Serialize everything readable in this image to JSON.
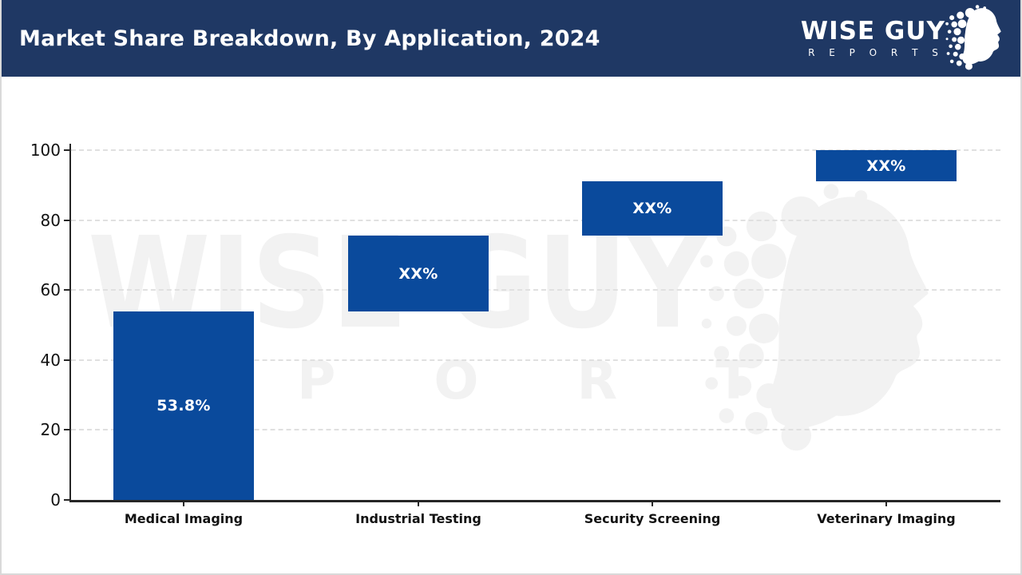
{
  "header": {
    "title": "Market Share Breakdown, By Application, 2024",
    "bg_color": "#1f3864",
    "logo": {
      "line1": "WISE GUY",
      "line2": "R E P O R T S"
    }
  },
  "watermark": {
    "line1": "WISE GUY",
    "line2": "P O R T S"
  },
  "chart_data": {
    "type": "bar",
    "subtype": "waterfall",
    "title": "Market Share Breakdown, By Application, 2024",
    "categories": [
      "Medical Imaging",
      "Industrial Testing",
      "Security Screening",
      "Veterinary Imaging"
    ],
    "segments": [
      {
        "category": "Medical Imaging",
        "start": 0,
        "end": 53.8,
        "label": "53.8%"
      },
      {
        "category": "Industrial Testing",
        "start": 53.8,
        "end": 75.5,
        "label": "XX%"
      },
      {
        "category": "Security Screening",
        "start": 75.5,
        "end": 91,
        "label": "XX%"
      },
      {
        "category": "Veterinary Imaging",
        "start": 91,
        "end": 100,
        "label": "XX%"
      }
    ],
    "xlabel": "",
    "ylabel": "",
    "ylim": [
      0,
      100
    ],
    "yticks": [
      0,
      20,
      40,
      60,
      80,
      100
    ],
    "grid": "horizontal-dashed",
    "legend": "none",
    "bar_color": "#0a4a9c",
    "bar_label_color": "#ffffff",
    "axis_color": "#262626"
  }
}
